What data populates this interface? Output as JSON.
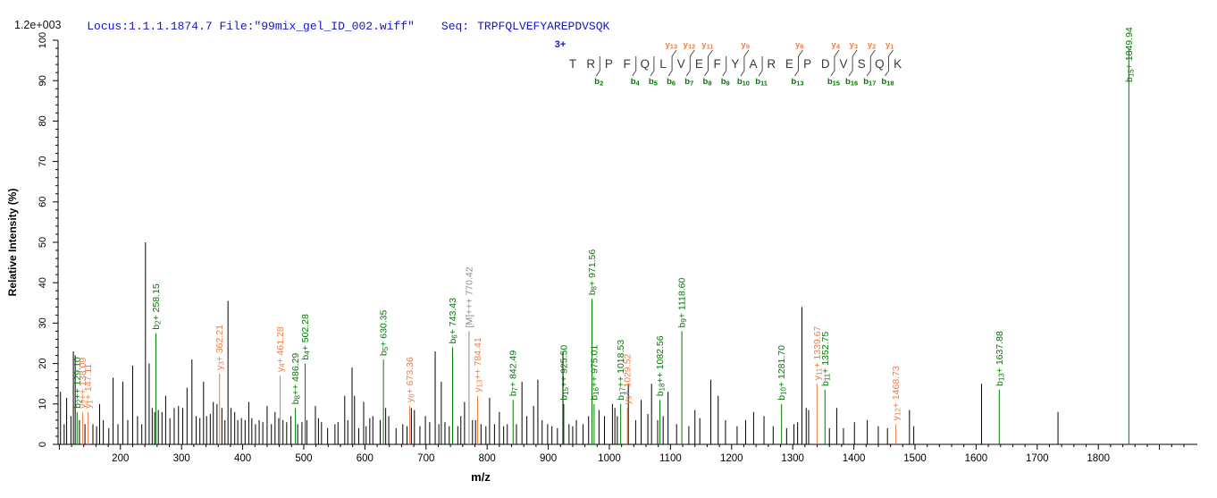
{
  "header": {
    "locus_file": "Locus:1.1.1.1874.7 File:\"99mix_gel_ID_002.wiff\"",
    "seq_label": "Seq:",
    "seq_value": "TRPFQLVEFYAREPDVSQK",
    "intensity_scale": "1.2e+003"
  },
  "colors": {
    "header_blue": "#1414cc",
    "b_ion_green": "#007b00",
    "y_ion_orange": "#ef7d45",
    "precursor_gray": "#8a8a8a",
    "peak_black": "#000000",
    "residue_gray": "#3a3a3a",
    "marker_gray": "#4a4a4a"
  },
  "annotation": {
    "charge_label": "3+",
    "residues": [
      "T",
      "R",
      "P",
      "F",
      "Q",
      "L",
      "V",
      "E",
      "F",
      "Y",
      "A",
      "R",
      "E",
      "P",
      "D",
      "V",
      "S",
      "Q",
      "K"
    ],
    "cleavages": [
      {
        "after": 2,
        "b": "b2"
      },
      {
        "after": 4,
        "b": "b4"
      },
      {
        "after": 5,
        "b": "b5"
      },
      {
        "after": 6,
        "b": "b6",
        "y": "y13"
      },
      {
        "after": 7,
        "b": "b7",
        "y": "y12"
      },
      {
        "after": 8,
        "b": "b8",
        "y": "y11"
      },
      {
        "after": 9,
        "b": "b9"
      },
      {
        "after": 10,
        "b": "b10",
        "y": "y9"
      },
      {
        "after": 11,
        "b": "b11"
      },
      {
        "after": 13,
        "b": "b13",
        "y": "y6"
      },
      {
        "after": 15,
        "b": "b15",
        "y": "y4"
      },
      {
        "after": 16,
        "b": "b16",
        "y": "y3"
      },
      {
        "after": 17,
        "b": "b17",
        "y": "y2"
      },
      {
        "after": 18,
        "b": "b18",
        "y": "y1"
      }
    ]
  },
  "chart_data": {
    "type": "bar",
    "subtype": "ms2-stick-spectrum",
    "title": "",
    "xlabel": "m/z",
    "ylabel": "Relative  Intensity (%)",
    "xlim": [
      98,
      1962
    ],
    "ylim": [
      0,
      100
    ],
    "x_tick_labels": [
      200,
      300,
      400,
      500,
      600,
      700,
      800,
      900,
      1000,
      1100,
      1200,
      1300,
      1400,
      1500,
      1600,
      1700,
      1800
    ],
    "x_minor_tick_step": 20,
    "y_tick_labels": [
      0,
      10,
      20,
      30,
      40,
      50,
      60,
      70,
      80,
      90,
      100
    ],
    "y_minor_tick_step": 2,
    "grid": false,
    "legend": "none",
    "intensity_scale_note": "1.2e+003",
    "labeled_peaks": [
      {
        "label": "b2++ 129.10",
        "mz": 129.1,
        "pct": 8,
        "ion": "b"
      },
      {
        "label": "y2++ 138.09",
        "mz": 138.09,
        "pct": 8,
        "ion": "y"
      },
      {
        "label": "y1+ 147.11",
        "mz": 147.11,
        "pct": 8,
        "ion": "y"
      },
      {
        "label": "b2+ 258.15",
        "mz": 258.15,
        "pct": 27.5,
        "ion": "b"
      },
      {
        "label": "y3+ 362.21",
        "mz": 362.21,
        "pct": 17.5,
        "ion": "y"
      },
      {
        "label": "y4+ 461.28",
        "mz": 461.28,
        "pct": 17,
        "ion": "y"
      },
      {
        "label": "b8++ 486.29",
        "mz": 486.29,
        "pct": 9,
        "ion": "b"
      },
      {
        "label": "b4+ 502.28",
        "mz": 502.28,
        "pct": 20,
        "ion": "b"
      },
      {
        "label": "b5+ 630.35",
        "mz": 630.35,
        "pct": 21,
        "ion": "b"
      },
      {
        "label": "y6+ 673.36",
        "mz": 673.36,
        "pct": 9.5,
        "ion": "y"
      },
      {
        "label": "b6+ 743.43",
        "mz": 743.43,
        "pct": 24,
        "ion": "b"
      },
      {
        "label": "[M]+++ 770.42",
        "mz": 770.42,
        "pct": 28,
        "ion": "M"
      },
      {
        "label": "y13++ 784.41",
        "mz": 784.41,
        "pct": 12,
        "ion": "y"
      },
      {
        "label": "b7+ 842.49",
        "mz": 842.49,
        "pct": 11,
        "ion": "b"
      },
      {
        "label": "b15++ 925.50",
        "mz": 925.5,
        "pct": 10,
        "ion": "b"
      },
      {
        "label": "b8+ 971.56",
        "mz": 971.56,
        "pct": 36,
        "ion": "b"
      },
      {
        "label": "b16++ 975.01",
        "mz": 975.01,
        "pct": 10,
        "ion": "b"
      },
      {
        "label": "b17++ 1018.53",
        "mz": 1018.53,
        "pct": 10,
        "ion": "b"
      },
      {
        "label": "y9+ 1029.52",
        "mz": 1029.52,
        "pct": 9,
        "ion": "y"
      },
      {
        "label": "b18++ 1082.56",
        "mz": 1082.56,
        "pct": 11,
        "ion": "b"
      },
      {
        "label": "b9+ 1118.60",
        "mz": 1118.6,
        "pct": 28,
        "ion": "b"
      },
      {
        "label": "b10+ 1281.70",
        "mz": 1281.7,
        "pct": 10,
        "ion": "b"
      },
      {
        "label": "y11+ 1339.67",
        "mz": 1339.67,
        "pct": 15,
        "ion": "y"
      },
      {
        "label": "b11+ 1352.75",
        "mz": 1352.75,
        "pct": 13.5,
        "ion": "b"
      },
      {
        "label": "y12+ 1468.73",
        "mz": 1468.73,
        "pct": 5,
        "ion": "y"
      },
      {
        "label": "b13+ 1637.88",
        "mz": 1637.88,
        "pct": 13.5,
        "ion": "b"
      },
      {
        "label": "b15+ 1849.94",
        "mz": 1849.94,
        "pct": 98,
        "ion": "b"
      }
    ],
    "background_peaks": [
      [
        102,
        13
      ],
      [
        108,
        5
      ],
      [
        112,
        11.5
      ],
      [
        119,
        7
      ],
      [
        123,
        23
      ],
      [
        126,
        22
      ],
      [
        133,
        6
      ],
      [
        142,
        5
      ],
      [
        155,
        5
      ],
      [
        161,
        4.5
      ],
      [
        166,
        10
      ],
      [
        172,
        6
      ],
      [
        181,
        4
      ],
      [
        188,
        16.5
      ],
      [
        196,
        5
      ],
      [
        204,
        15.5
      ],
      [
        212,
        6
      ],
      [
        220,
        19.5
      ],
      [
        228,
        7
      ],
      [
        235,
        5
      ],
      [
        241,
        50
      ],
      [
        247,
        20
      ],
      [
        252,
        9
      ],
      [
        256,
        8
      ],
      [
        262,
        8.5
      ],
      [
        268,
        8
      ],
      [
        274,
        12
      ],
      [
        281,
        6.5
      ],
      [
        288,
        9
      ],
      [
        295,
        9.5
      ],
      [
        302,
        9
      ],
      [
        309,
        14
      ],
      [
        317,
        21
      ],
      [
        324,
        7
      ],
      [
        330,
        6.5
      ],
      [
        336,
        15.5
      ],
      [
        341,
        7
      ],
      [
        347,
        7.5
      ],
      [
        352,
        10.5
      ],
      [
        358,
        10
      ],
      [
        366,
        9
      ],
      [
        371,
        6
      ],
      [
        376,
        35.5
      ],
      [
        381,
        9
      ],
      [
        387,
        8
      ],
      [
        392,
        6
      ],
      [
        398,
        6.5
      ],
      [
        404,
        6
      ],
      [
        410,
        10.5
      ],
      [
        415,
        6.5
      ],
      [
        421,
        5
      ],
      [
        427,
        6
      ],
      [
        433,
        5.5
      ],
      [
        440,
        9.5
      ],
      [
        447,
        5
      ],
      [
        453,
        8
      ],
      [
        459,
        6.5
      ],
      [
        466,
        6
      ],
      [
        472,
        5.5
      ],
      [
        479,
        7
      ],
      [
        490,
        5
      ],
      [
        497,
        5.5
      ],
      [
        505,
        6
      ],
      [
        519,
        9.5
      ],
      [
        524,
        6.5
      ],
      [
        529,
        5.5
      ],
      [
        539,
        4
      ],
      [
        551,
        5
      ],
      [
        556,
        5.5
      ],
      [
        567,
        12
      ],
      [
        572,
        6
      ],
      [
        579,
        19
      ],
      [
        583,
        12
      ],
      [
        590,
        4
      ],
      [
        598,
        10.5
      ],
      [
        602,
        4.5
      ],
      [
        608,
        6.5
      ],
      [
        613,
        7
      ],
      [
        625,
        6
      ],
      [
        634,
        9
      ],
      [
        639,
        7
      ],
      [
        651,
        4
      ],
      [
        662,
        5
      ],
      [
        669,
        4.5
      ],
      [
        676,
        9
      ],
      [
        681,
        8.5
      ],
      [
        690,
        4.5
      ],
      [
        699,
        7
      ],
      [
        706,
        5.5
      ],
      [
        715,
        23
      ],
      [
        721,
        5
      ],
      [
        725,
        15.5
      ],
      [
        731,
        5.5
      ],
      [
        738,
        4.5
      ],
      [
        752,
        4.5
      ],
      [
        757,
        7
      ],
      [
        763,
        10.5
      ],
      [
        776,
        6
      ],
      [
        781,
        6
      ],
      [
        790,
        5
      ],
      [
        798,
        4.5
      ],
      [
        804,
        11.5
      ],
      [
        812,
        5
      ],
      [
        820,
        8
      ],
      [
        827,
        4.5
      ],
      [
        833,
        5
      ],
      [
        848,
        5
      ],
      [
        857,
        15.5
      ],
      [
        865,
        7
      ],
      [
        876,
        9.5
      ],
      [
        883,
        16
      ],
      [
        890,
        6
      ],
      [
        899,
        5
      ],
      [
        906,
        4.5
      ],
      [
        915,
        4
      ],
      [
        924,
        23
      ],
      [
        934,
        5
      ],
      [
        940,
        4.5
      ],
      [
        946,
        6
      ],
      [
        957,
        5
      ],
      [
        966,
        7
      ],
      [
        983,
        8.5
      ],
      [
        992,
        7
      ],
      [
        1005,
        10
      ],
      [
        1009,
        9
      ],
      [
        1013,
        7
      ],
      [
        1031,
        15
      ],
      [
        1043,
        6
      ],
      [
        1052,
        11
      ],
      [
        1063,
        7.5
      ],
      [
        1069,
        15
      ],
      [
        1079,
        6
      ],
      [
        1088,
        7
      ],
      [
        1096,
        13
      ],
      [
        1110,
        5
      ],
      [
        1130,
        4.5
      ],
      [
        1140,
        8.5
      ],
      [
        1148,
        6.5
      ],
      [
        1166,
        16
      ],
      [
        1178,
        12
      ],
      [
        1190,
        6
      ],
      [
        1209,
        4.5
      ],
      [
        1223,
        6
      ],
      [
        1236,
        8
      ],
      [
        1253,
        7
      ],
      [
        1268,
        4.5
      ],
      [
        1290,
        4
      ],
      [
        1302,
        5
      ],
      [
        1308,
        5.5
      ],
      [
        1315,
        34
      ],
      [
        1322,
        9
      ],
      [
        1326,
        8.5
      ],
      [
        1360,
        4
      ],
      [
        1372,
        9
      ],
      [
        1383,
        4
      ],
      [
        1401,
        5.5
      ],
      [
        1422,
        6
      ],
      [
        1440,
        4.5
      ],
      [
        1455,
        4
      ],
      [
        1491,
        8.5
      ],
      [
        1498,
        4.5
      ],
      [
        1609,
        15
      ],
      [
        1734,
        8
      ]
    ]
  }
}
